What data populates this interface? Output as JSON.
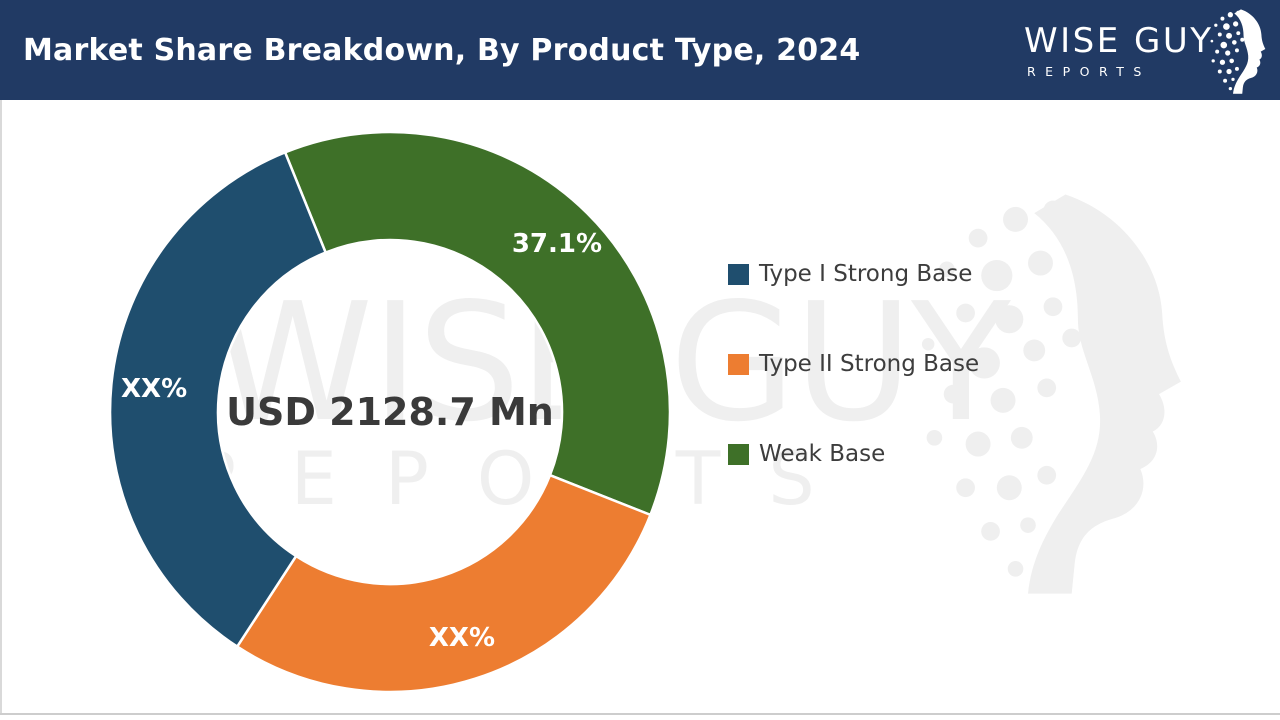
{
  "header": {
    "title": "Market Share Breakdown, By Product Type, 2024",
    "logo": {
      "line1": "WISE GUY",
      "line2": "REPORTS"
    }
  },
  "watermark": {
    "line1": "WISE GUY",
    "line2": "REPORTS"
  },
  "chart_data": {
    "type": "pie",
    "subtype": "donut",
    "title": "Market Share Breakdown, By Product Type, 2024",
    "center_label": "USD 2128.7 Mn",
    "start_angle_deg": -22,
    "clockwise": true,
    "legend_position": "right",
    "slices": [
      {
        "name": "Weak Base",
        "display_label": "37.1%",
        "value_pct": 37.1,
        "color": "#3E7028"
      },
      {
        "name": "Type II Strong Base",
        "display_label": "XX%",
        "value_pct": 28.2,
        "color": "#ED7D31"
      },
      {
        "name": "Type I Strong Base",
        "display_label": "XX%",
        "value_pct": 34.7,
        "color": "#1F4E6E"
      }
    ]
  },
  "legend": {
    "items": [
      {
        "label": "Type I Strong Base",
        "color": "#1F4E6E"
      },
      {
        "label": "Type II Strong Base",
        "color": "#ED7D31"
      },
      {
        "label": "Weak Base",
        "color": "#3E7028"
      }
    ]
  },
  "colors": {
    "header_bg": "#213A64",
    "center_text": "#3A3A3A",
    "legend_text": "#3D3D3D",
    "watermark": "#EFEFEF",
    "slice_label_text": "#FFFFFF"
  }
}
